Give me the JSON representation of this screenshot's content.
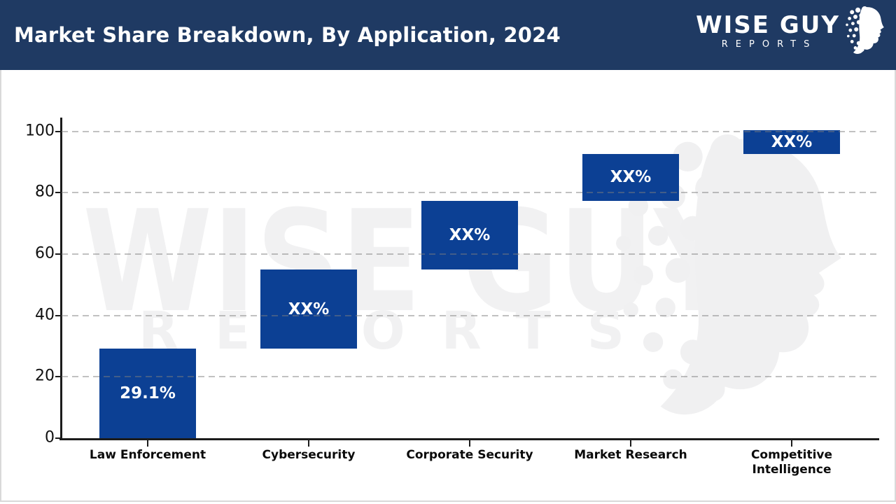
{
  "header": {
    "title": "Market Share Breakdown, By Application, 2024",
    "bg_color": "#1f3a63",
    "logo": {
      "brand_line1": "WISE GUY",
      "brand_line2": "REPORTS"
    }
  },
  "watermark": {
    "line1": "WISE GUY",
    "line2": "REPORTS"
  },
  "chart_data": {
    "type": "bar",
    "subtype": "floating-waterfall",
    "title": "Market Share Breakdown, By Application, 2024",
    "categories": [
      "Law Enforcement",
      "Cybersecurity",
      "Corporate Security",
      "Market Research",
      "Competitive Intelligence"
    ],
    "segments": [
      {
        "category": "Law Enforcement",
        "start": 0,
        "end": 29.1,
        "label": "29.1%"
      },
      {
        "category": "Cybersecurity",
        "start": 29.1,
        "end": 55.0,
        "label": "XX%"
      },
      {
        "category": "Corporate Security",
        "start": 55.0,
        "end": 77.3,
        "label": "XX%"
      },
      {
        "category": "Market Research",
        "start": 77.3,
        "end": 92.6,
        "label": "XX%"
      },
      {
        "category": "Competitive Intelligence",
        "start": 92.6,
        "end": 100.3,
        "label": "XX%"
      }
    ],
    "yticks": [
      0,
      20,
      40,
      60,
      80,
      100
    ],
    "ylim": [
      0,
      105
    ],
    "xlabel": "",
    "ylabel": "",
    "grid": true,
    "legend": false,
    "bar_color": "#0c4094",
    "bar_label_color": "#ffffff",
    "axis_color": "#1c1c1c",
    "grid_color": "#c8c8c8",
    "header_color": "#1f3a63",
    "watermark_color": "#f1f1f2"
  }
}
